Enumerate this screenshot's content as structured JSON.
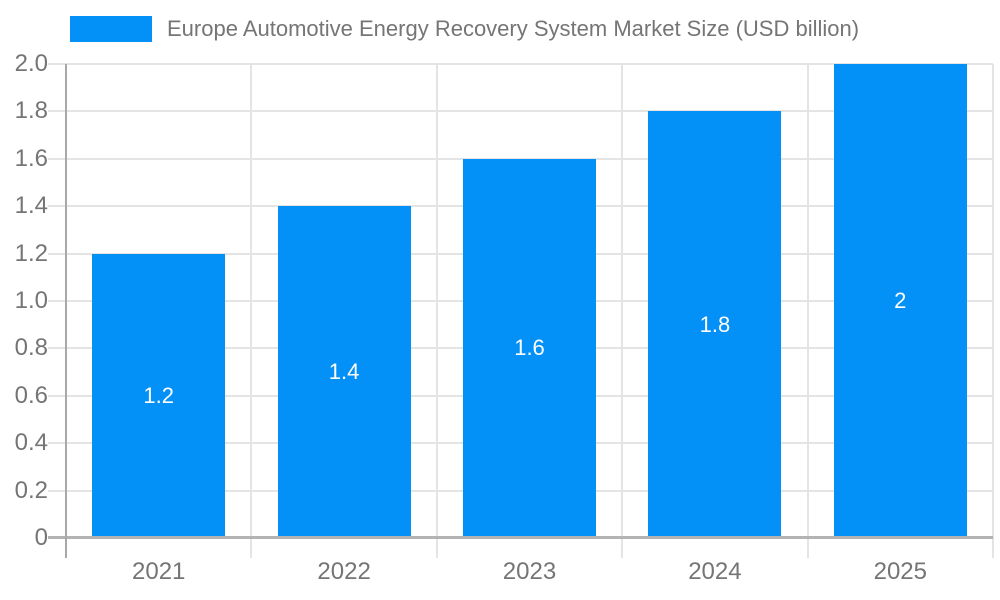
{
  "legend": {
    "label": "Europe Automotive Energy Recovery System Market Size (USD billion)"
  },
  "chart_data": {
    "type": "bar",
    "title": "Europe Automotive Energy Recovery System Market Size (USD billion)",
    "categories": [
      "2021",
      "2022",
      "2023",
      "2024",
      "2025"
    ],
    "values": [
      1.2,
      1.4,
      1.6,
      1.8,
      2
    ],
    "value_labels": [
      "1.2",
      "1.4",
      "1.6",
      "1.8",
      "2"
    ],
    "series": [
      {
        "name": "Europe Automotive Energy Recovery System Market Size (USD billion)",
        "values": [
          1.2,
          1.4,
          1.6,
          1.8,
          2
        ]
      }
    ],
    "xlabel": "",
    "ylabel": "",
    "ylim": [
      0,
      2
    ],
    "yticks": [
      0,
      0.2,
      0.4,
      0.6,
      0.8,
      1.0,
      1.2,
      1.4,
      1.6,
      1.8,
      2.0
    ],
    "ytick_labels": [
      "0",
      "0.2",
      "0.4",
      "0.6",
      "0.8",
      "1.0",
      "1.2",
      "1.4",
      "1.6",
      "1.8",
      "2.0"
    ],
    "grid": "horizontal gridlines plus vertical category-boundary lines with outside ticks",
    "legend_position": "top-left",
    "bar_color": "#0390f7",
    "value_label_color": "#ffffff",
    "axis_text_color": "#757575",
    "gridline_color": "#e4e4e4",
    "axis_line_color": "#a8a8a8",
    "x_axis_line_color": "#b3b3b3",
    "background_color": "#ffffff"
  }
}
